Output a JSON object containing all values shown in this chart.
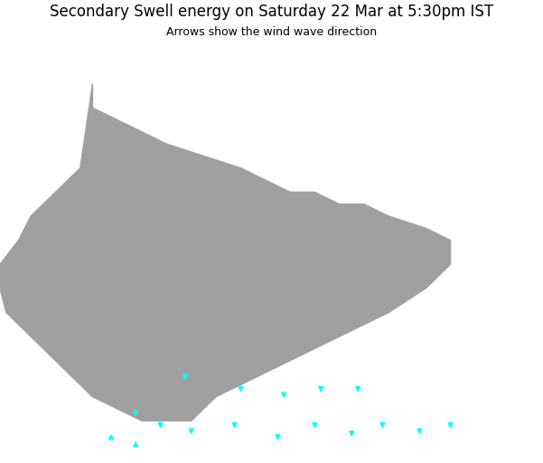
{
  "title": "Secondary Swell energy on Saturday 22 Mar at 5:30pm IST",
  "subtitle": "Arrows show the wind wave direction",
  "title_fontsize": 12,
  "subtitle_fontsize": 9,
  "map_extent": [
    60.5,
    104.5,
    5.5,
    40.5
  ],
  "background_color": "#000000",
  "header_bg": "#ffffff",
  "header_text_color": "#000000",
  "cyan_arrows": [
    [
      69.5,
      7.8,
      90
    ],
    [
      71.5,
      7.2,
      90
    ],
    [
      73.5,
      8.5,
      270
    ],
    [
      76.0,
      8.0,
      270
    ],
    [
      79.5,
      8.5,
      270
    ],
    [
      83.0,
      7.5,
      270
    ],
    [
      86.0,
      8.5,
      270
    ],
    [
      89.0,
      7.8,
      270
    ],
    [
      91.5,
      8.5,
      270
    ],
    [
      94.5,
      8.0,
      270
    ],
    [
      97.0,
      8.5,
      270
    ],
    [
      80.0,
      11.5,
      270
    ],
    [
      83.5,
      11.0,
      270
    ],
    [
      86.5,
      11.5,
      270
    ],
    [
      89.5,
      11.5,
      270
    ],
    [
      75.5,
      12.5,
      270
    ],
    [
      71.5,
      9.5,
      270
    ]
  ],
  "figsize": [
    6.01,
    5.12
  ],
  "dpi": 100
}
